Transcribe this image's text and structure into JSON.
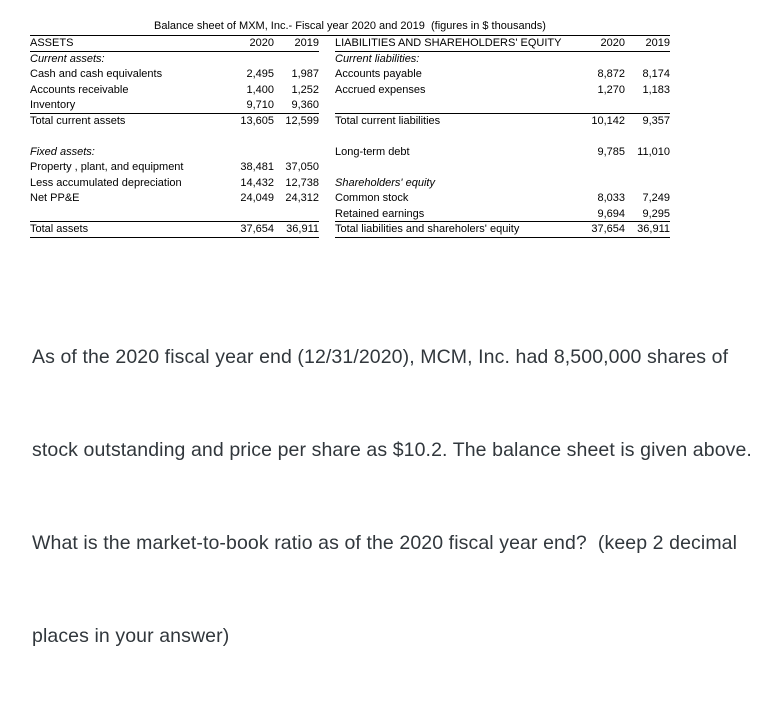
{
  "sheet": {
    "title": "Balance sheet of MXM, Inc.- Fiscal year 2020 and 2019  (figures in $ thousands)",
    "left": {
      "header": {
        "label": "ASSETS",
        "col_2020": "2020",
        "col_2019": "2019"
      },
      "rows": [
        {
          "label": "Current assets:",
          "v2020": "",
          "v2019": ""
        },
        {
          "label": "Cash and cash equivalents",
          "v2020": "2,495",
          "v2019": "1,987"
        },
        {
          "label": "Accounts receivable",
          "v2020": "1,400",
          "v2019": "1,252"
        },
        {
          "label": "Inventory",
          "v2020": "9,710",
          "v2019": "9,360"
        },
        {
          "label": "Total current assets",
          "v2020": "13,605",
          "v2019": "12,599"
        },
        {
          "label": "",
          "v2020": "",
          "v2019": ""
        },
        {
          "label": "Fixed assets:",
          "v2020": "",
          "v2019": ""
        },
        {
          "label": "Property , plant, and equipment",
          "v2020": "38,481",
          "v2019": "37,050"
        },
        {
          "label": "Less accumulated depreciation",
          "v2020": "14,432",
          "v2019": "12,738"
        },
        {
          "label": "Net PP&E",
          "v2020": "24,049",
          "v2019": "24,312"
        },
        {
          "label": "",
          "v2020": "",
          "v2019": ""
        },
        {
          "label": "Total assets",
          "v2020": "37,654",
          "v2019": "36,911"
        }
      ]
    },
    "right": {
      "header": {
        "label": "LIABILITIES AND SHAREHOLDERS' EQUITY",
        "col_2020": "2020",
        "col_2019": "2019"
      },
      "rows": [
        {
          "label": "Current liabilities:",
          "v2020": "",
          "v2019": ""
        },
        {
          "label": "Accounts payable",
          "v2020": "8,872",
          "v2019": "8,174"
        },
        {
          "label": "Accrued expenses",
          "v2020": "1,270",
          "v2019": "1,183"
        },
        {
          "label": "",
          "v2020": "",
          "v2019": ""
        },
        {
          "label": "Total current liabilities",
          "v2020": "10,142",
          "v2019": "9,357"
        },
        {
          "label": "",
          "v2020": "",
          "v2019": ""
        },
        {
          "label": "Long-term debt",
          "v2020": "9,785",
          "v2019": "11,010"
        },
        {
          "label": "",
          "v2020": "",
          "v2019": ""
        },
        {
          "label": "Shareholders' equity",
          "v2020": "",
          "v2019": ""
        },
        {
          "label": "Common stock",
          "v2020": "8,033",
          "v2019": "7,249"
        },
        {
          "label": "Retained earnings",
          "v2020": "9,694",
          "v2019": "9,295"
        },
        {
          "label": "Total liabilities and shareholers' equity",
          "v2020": "37,654",
          "v2019": "36,911"
        }
      ]
    }
  },
  "question": {
    "lines": [
      "As of the 2020 fiscal year end (12/31/2020), MCM, Inc. had 8,500,000 shares of",
      "stock outstanding and price per share as $10.2. The balance sheet is given above.",
      "What is the market-to-book ratio as of the 2020 fiscal year end?  (keep 2 decimal",
      "places in your answer)"
    ]
  }
}
